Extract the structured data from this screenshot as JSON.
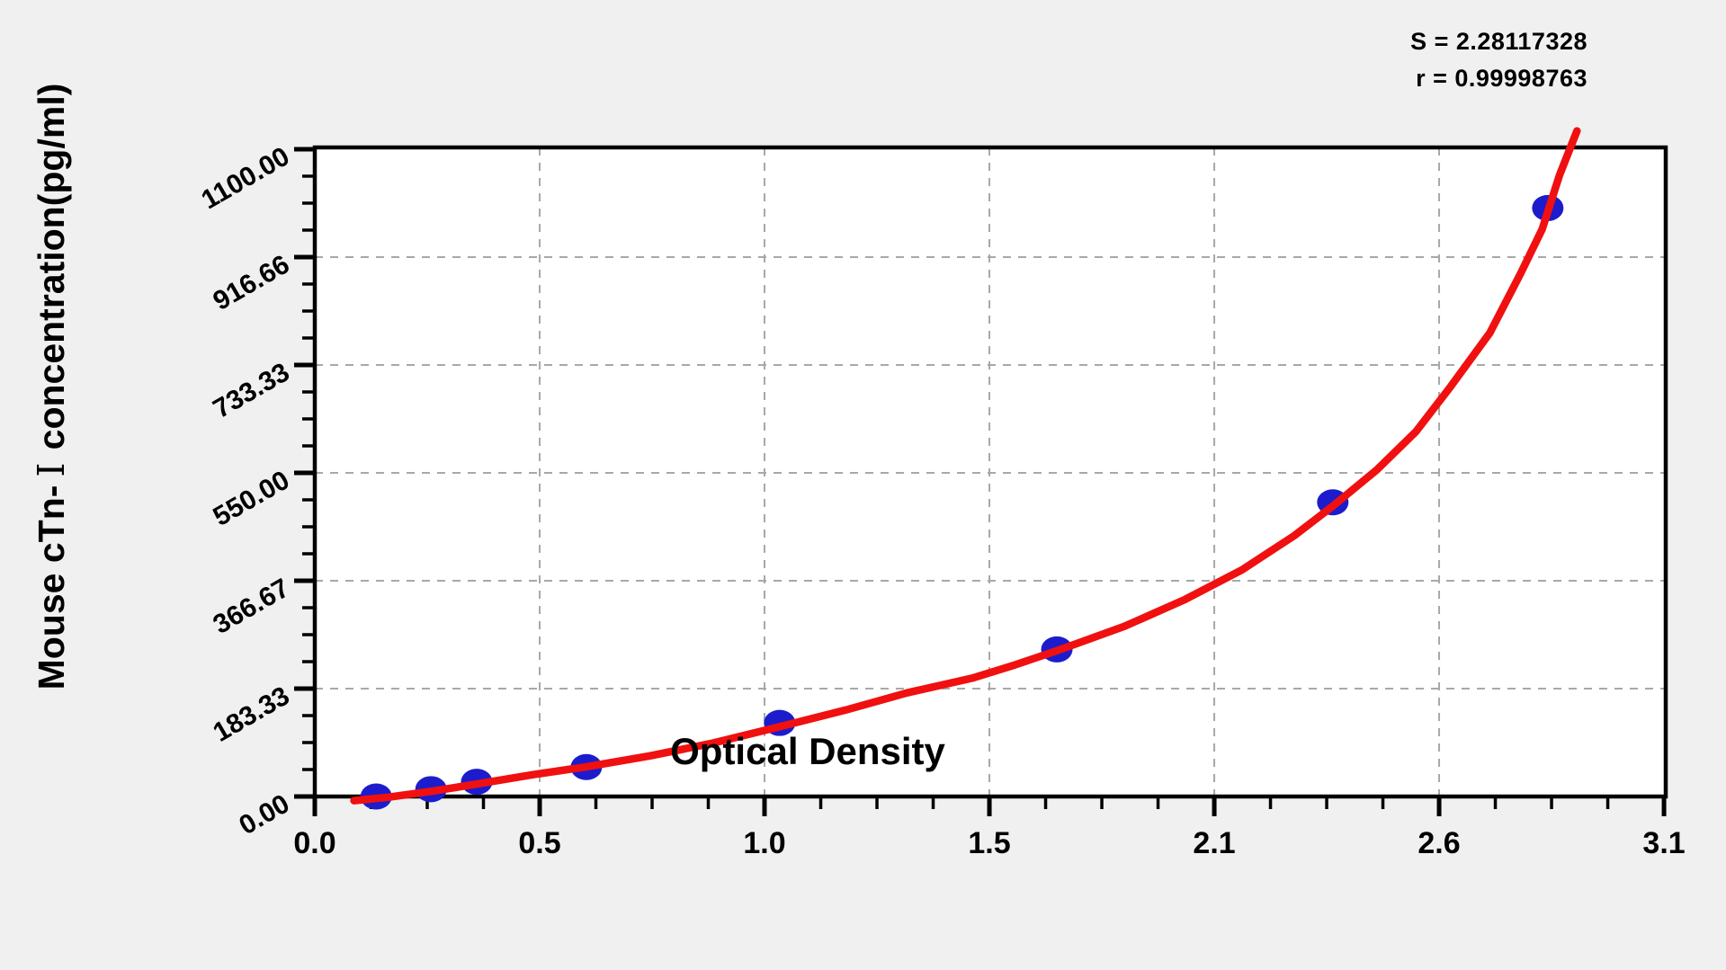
{
  "figure": {
    "background": "#f0f0f0",
    "stats": {
      "s_line": "S = 2.28117328",
      "r_line": "r = 0.99998763"
    },
    "x_title": "Optical Density",
    "y_title_prefix": "Mouse cTn-",
    "y_title_numeral": "Ⅰ",
    "y_title_suffix": "concentration(pg/ml)"
  },
  "chart_data": {
    "type": "scatter",
    "title": "",
    "xlabel": "Optical Density",
    "ylabel": "Mouse cTn-Ⅰ concentration(pg/ml)",
    "xlim": [
      0,
      3.104
    ],
    "ylim": [
      0,
      1103
    ],
    "grid": "dashed gray lines at interior major ticks, full plot box frame",
    "legend_position": "none",
    "colors": {
      "point": "#1c1ccd",
      "curve": "#f01010",
      "gridline": "#a8a8a8",
      "frame": "#000000",
      "plot_background": "#ffffff"
    },
    "x_ticks": {
      "values": [
        0,
        0.5167,
        1.0333,
        1.55,
        2.0667,
        2.5833,
        3.1
      ],
      "labels": [
        "0.0",
        "0.5",
        "1.0",
        "1.5",
        "2.1",
        "2.6",
        "3.1"
      ],
      "minor_between": 3
    },
    "y_ticks": {
      "values": [
        0,
        183.33,
        366.67,
        550.0,
        733.33,
        916.66,
        1100.0
      ],
      "labels": [
        "0.00",
        "183.33",
        "366.67",
        "550.00",
        "733.33",
        "916.66",
        "1100.00"
      ],
      "minor_between": 3
    },
    "series": [
      {
        "name": "standard-points",
        "type": "scatter",
        "marker": "ellipse",
        "color": "#1c1ccd",
        "od": [
          0.141,
          0.267,
          0.372,
          0.624,
          1.068,
          1.705,
          2.339,
          2.833
        ],
        "concentration": [
          0,
          12.5,
          25,
          50,
          125,
          250,
          500,
          1000
        ]
      },
      {
        "name": "fitted-curve",
        "type": "line",
        "color": "#f01010",
        "points": [
          [
            0.09,
            -7
          ],
          [
            0.17,
            -1
          ],
          [
            0.27,
            9
          ],
          [
            0.37,
            21
          ],
          [
            0.5,
            37
          ],
          [
            0.62,
            50
          ],
          [
            0.77,
            69
          ],
          [
            0.91,
            90
          ],
          [
            1.07,
            119
          ],
          [
            1.22,
            147
          ],
          [
            1.36,
            176
          ],
          [
            1.51,
            201
          ],
          [
            1.61,
            224
          ],
          [
            1.71,
            249
          ],
          [
            1.86,
            289
          ],
          [
            2.0,
            335
          ],
          [
            2.13,
            385
          ],
          [
            2.25,
            443
          ],
          [
            2.34,
            494
          ],
          [
            2.44,
            555
          ],
          [
            2.53,
            620
          ],
          [
            2.61,
            697
          ],
          [
            2.7,
            788
          ],
          [
            2.77,
            888
          ],
          [
            2.82,
            964
          ],
          [
            2.86,
            1056
          ],
          [
            2.89,
            1112
          ],
          [
            2.9,
            1131
          ]
        ]
      }
    ],
    "fit_stats": {
      "S": 2.28117328,
      "r": 0.99998763
    }
  }
}
